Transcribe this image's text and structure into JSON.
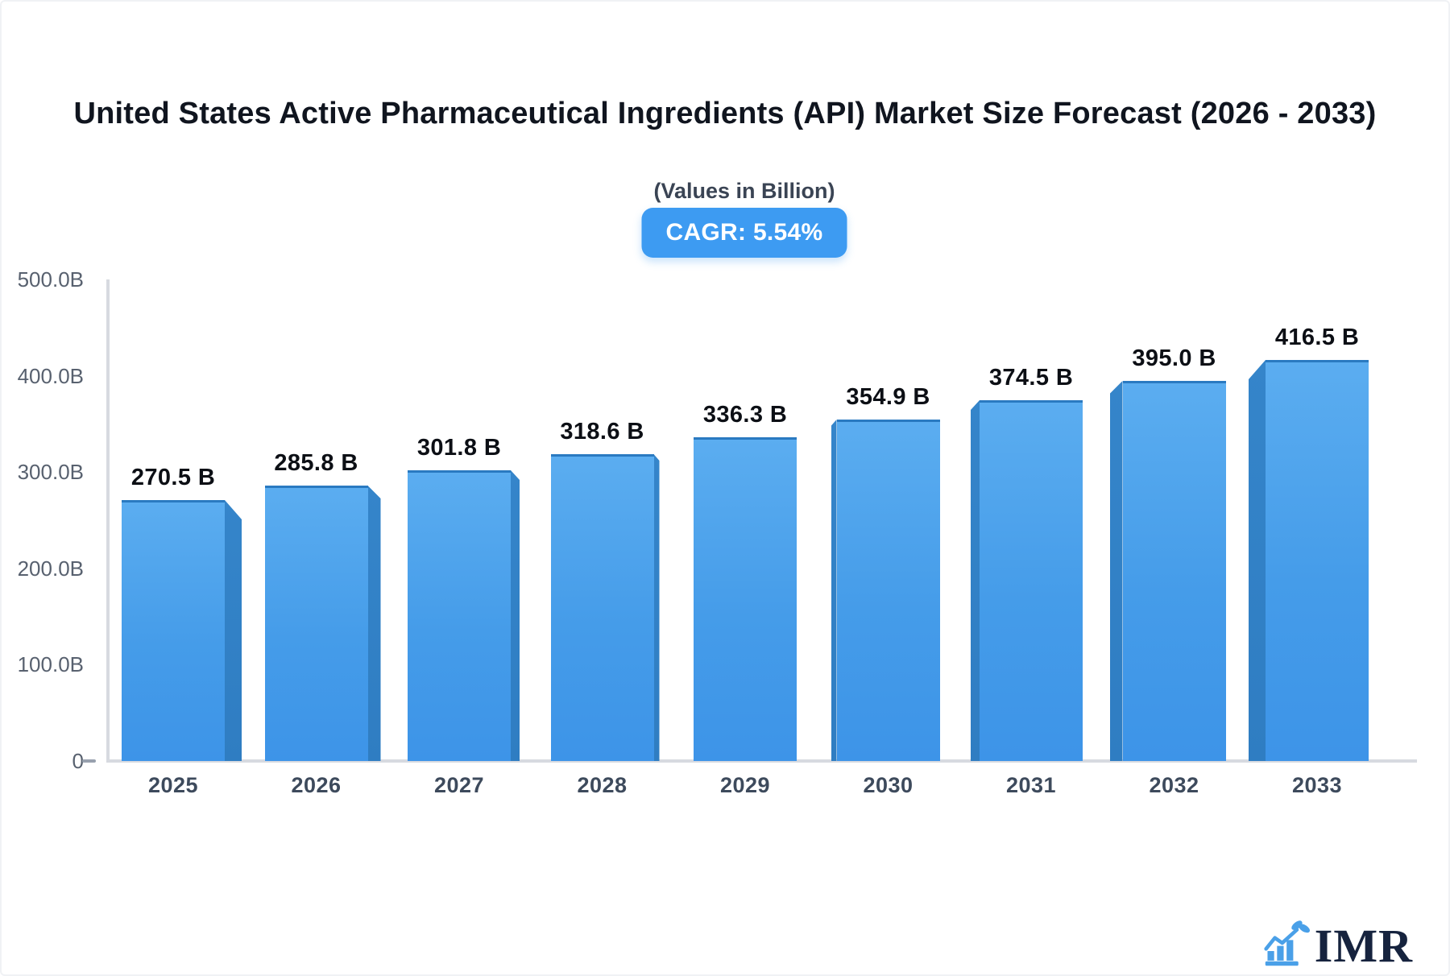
{
  "header": {
    "title": "United States Active Pharmaceutical Ingredients (API) Market Size Forecast (2026 - 2033)",
    "subtitle": "(Values in Billion)",
    "cagr_label": "CAGR: 5.54%"
  },
  "chart_data": {
    "type": "bar",
    "title": "United States Active Pharmaceutical Ingredients (API) Market Size Forecast (2026 - 2033)",
    "subtitle": "(Values in Billion)",
    "annotation": "CAGR: 5.54%",
    "categories": [
      "2025",
      "2026",
      "2027",
      "2028",
      "2029",
      "2030",
      "2031",
      "2032",
      "2033"
    ],
    "values": [
      270.5,
      285.8,
      301.8,
      318.6,
      336.3,
      354.9,
      374.5,
      395.0,
      416.5
    ],
    "value_labels": [
      "270.5 B",
      "285.8 B",
      "301.8 B",
      "318.6 B",
      "336.3 B",
      "354.9 B",
      "374.5 B",
      "395.0 B",
      "416.5 B"
    ],
    "ylim": [
      0,
      500
    ],
    "yticks": [
      {
        "value": 500,
        "label": "500.0B"
      },
      {
        "value": 400,
        "label": "400.0B"
      },
      {
        "value": 300,
        "label": "300.0B"
      },
      {
        "value": 200,
        "label": "200.0B"
      },
      {
        "value": 100,
        "label": "100.0B"
      },
      {
        "value": 0,
        "label": "0"
      }
    ],
    "xlabel": "",
    "ylabel": "",
    "grid": false,
    "legend": false,
    "bar_effect": "3d-extrude-center-perspective"
  },
  "branding": {
    "logo_text": "IMR"
  },
  "colors": {
    "bar_top": "#5badf0",
    "bar_bottom": "#3d94e8",
    "bar_side": "#2f7dc2",
    "bar_top_edge": "#2a7ac1",
    "badge_bg": "#3d9bf2",
    "badge_text": "#ffffff",
    "title": "#10151f",
    "subtitle": "#3a4454",
    "axis_line": "#d7dae0",
    "y_label_color": "#58616f",
    "x_label_color": "#3d4a5c",
    "value_label_color": "#0c0f15",
    "logo_blue": "#4aa0e8",
    "logo_navy": "#16233e"
  }
}
